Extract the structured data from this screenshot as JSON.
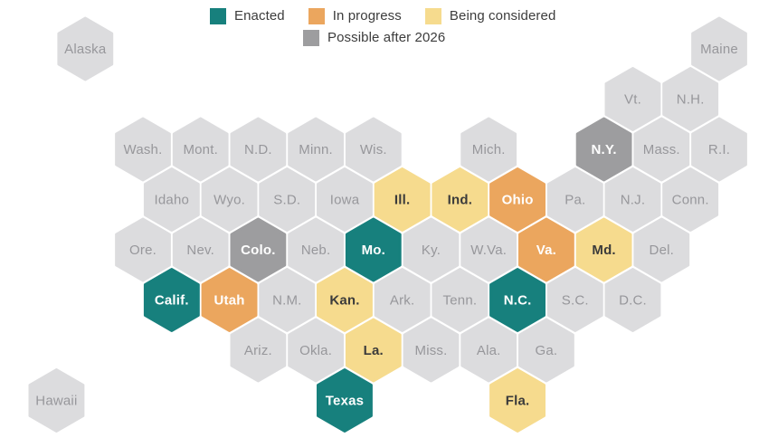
{
  "legend": {
    "items": [
      {
        "key": "enacted",
        "label": "Enacted"
      },
      {
        "key": "in_progress",
        "label": "In progress"
      },
      {
        "key": "being_considered",
        "label": "Being considered"
      },
      {
        "key": "possible_after_2026",
        "label": "Possible after 2026"
      }
    ]
  },
  "colors": {
    "enacted": "#17807d",
    "in_progress": "#eba65e",
    "being_considered": "#f6db8e",
    "possible_after_2026": "#9d9d9f",
    "none": "#dcdcde",
    "label_gray": "#97979b",
    "label_dark": "#3b3b3b",
    "label_white": "#ffffff",
    "legend_text": "#3c3c3c",
    "background": "#ffffff"
  },
  "chart_data": {
    "type": "heatmap",
    "subtype": "us-state-hex-cartogram",
    "title": "",
    "legend_position": "top-center",
    "categories": [
      "Enacted",
      "In progress",
      "Being considered",
      "Possible after 2026"
    ],
    "status_by_category": {
      "Enacted": [
        "Calif.",
        "Mo.",
        "N.C.",
        "Texas"
      ],
      "In progress": [
        "Utah",
        "Ohio",
        "Va."
      ],
      "Being considered": [
        "Ill.",
        "Ind.",
        "Kan.",
        "Md.",
        "La.",
        "Fla."
      ],
      "Possible after 2026": [
        "N.Y.",
        "Colo."
      ]
    },
    "states": [
      {
        "id": "alaska",
        "label": "Alaska",
        "row": 0,
        "col": -1,
        "status": "none"
      },
      {
        "id": "maine",
        "label": "Maine",
        "row": 0,
        "col": 10,
        "status": "none"
      },
      {
        "id": "vt",
        "label": "Vt.",
        "row": 1,
        "col": 8,
        "status": "none"
      },
      {
        "id": "nh",
        "label": "N.H.",
        "row": 1,
        "col": 9,
        "status": "none"
      },
      {
        "id": "wash",
        "label": "Wash.",
        "row": 2,
        "col": 0,
        "status": "none"
      },
      {
        "id": "mont",
        "label": "Mont.",
        "row": 2,
        "col": 1,
        "status": "none"
      },
      {
        "id": "nd",
        "label": "N.D.",
        "row": 2,
        "col": 2,
        "status": "none"
      },
      {
        "id": "minn",
        "label": "Minn.",
        "row": 2,
        "col": 3,
        "status": "none"
      },
      {
        "id": "wis",
        "label": "Wis.",
        "row": 2,
        "col": 4,
        "status": "none"
      },
      {
        "id": "mich",
        "label": "Mich.",
        "row": 2,
        "col": 6,
        "status": "none"
      },
      {
        "id": "ny",
        "label": "N.Y.",
        "row": 2,
        "col": 8,
        "status": "possible_after_2026"
      },
      {
        "id": "mass",
        "label": "Mass.",
        "row": 2,
        "col": 9,
        "status": "none"
      },
      {
        "id": "ri",
        "label": "R.I.",
        "row": 2,
        "col": 10,
        "status": "none"
      },
      {
        "id": "idaho",
        "label": "Idaho",
        "row": 3,
        "col": 0,
        "status": "none"
      },
      {
        "id": "wyo",
        "label": "Wyo.",
        "row": 3,
        "col": 1,
        "status": "none"
      },
      {
        "id": "sd",
        "label": "S.D.",
        "row": 3,
        "col": 2,
        "status": "none"
      },
      {
        "id": "iowa",
        "label": "Iowa",
        "row": 3,
        "col": 3,
        "status": "none"
      },
      {
        "id": "ill",
        "label": "Ill.",
        "row": 3,
        "col": 4,
        "status": "being_considered"
      },
      {
        "id": "ind",
        "label": "Ind.",
        "row": 3,
        "col": 5,
        "status": "being_considered"
      },
      {
        "id": "ohio",
        "label": "Ohio",
        "row": 3,
        "col": 6,
        "status": "in_progress"
      },
      {
        "id": "pa",
        "label": "Pa.",
        "row": 3,
        "col": 7,
        "status": "none"
      },
      {
        "id": "nj",
        "label": "N.J.",
        "row": 3,
        "col": 8,
        "status": "none"
      },
      {
        "id": "conn",
        "label": "Conn.",
        "row": 3,
        "col": 9,
        "status": "none"
      },
      {
        "id": "ore",
        "label": "Ore.",
        "row": 4,
        "col": 0,
        "status": "none"
      },
      {
        "id": "nev",
        "label": "Nev.",
        "row": 4,
        "col": 1,
        "status": "none"
      },
      {
        "id": "colo",
        "label": "Colo.",
        "row": 4,
        "col": 2,
        "status": "possible_after_2026"
      },
      {
        "id": "neb",
        "label": "Neb.",
        "row": 4,
        "col": 3,
        "status": "none"
      },
      {
        "id": "mo",
        "label": "Mo.",
        "row": 4,
        "col": 4,
        "status": "enacted"
      },
      {
        "id": "ky",
        "label": "Ky.",
        "row": 4,
        "col": 5,
        "status": "none"
      },
      {
        "id": "wva",
        "label": "W.Va.",
        "row": 4,
        "col": 6,
        "status": "none"
      },
      {
        "id": "va",
        "label": "Va.",
        "row": 4,
        "col": 7,
        "status": "in_progress"
      },
      {
        "id": "md",
        "label": "Md.",
        "row": 4,
        "col": 8,
        "status": "being_considered"
      },
      {
        "id": "del",
        "label": "Del.",
        "row": 4,
        "col": 9,
        "status": "none"
      },
      {
        "id": "calif",
        "label": "Calif.",
        "row": 5,
        "col": 0,
        "status": "enacted"
      },
      {
        "id": "utah",
        "label": "Utah",
        "row": 5,
        "col": 1,
        "status": "in_progress"
      },
      {
        "id": "nm",
        "label": "N.M.",
        "row": 5,
        "col": 2,
        "status": "none"
      },
      {
        "id": "kan",
        "label": "Kan.",
        "row": 5,
        "col": 3,
        "status": "being_considered"
      },
      {
        "id": "ark",
        "label": "Ark.",
        "row": 5,
        "col": 4,
        "status": "none"
      },
      {
        "id": "tenn",
        "label": "Tenn.",
        "row": 5,
        "col": 5,
        "status": "none"
      },
      {
        "id": "nc",
        "label": "N.C.",
        "row": 5,
        "col": 6,
        "status": "enacted"
      },
      {
        "id": "sc",
        "label": "S.C.",
        "row": 5,
        "col": 7,
        "status": "none"
      },
      {
        "id": "dc",
        "label": "D.C.",
        "row": 5,
        "col": 8,
        "status": "none"
      },
      {
        "id": "ariz",
        "label": "Ariz.",
        "row": 6,
        "col": 2,
        "status": "none"
      },
      {
        "id": "okla",
        "label": "Okla.",
        "row": 6,
        "col": 3,
        "status": "none"
      },
      {
        "id": "la",
        "label": "La.",
        "row": 6,
        "col": 4,
        "status": "being_considered"
      },
      {
        "id": "miss",
        "label": "Miss.",
        "row": 6,
        "col": 5,
        "status": "none"
      },
      {
        "id": "ala",
        "label": "Ala.",
        "row": 6,
        "col": 6,
        "status": "none"
      },
      {
        "id": "ga",
        "label": "Ga.",
        "row": 6,
        "col": 7,
        "status": "none"
      },
      {
        "id": "hawaii",
        "label": "Hawaii",
        "row": 7,
        "col": -2,
        "status": "none"
      },
      {
        "id": "texas",
        "label": "Texas",
        "row": 7,
        "col": 3,
        "status": "enacted"
      },
      {
        "id": "fla",
        "label": "Fla.",
        "row": 7,
        "col": 6,
        "status": "being_considered"
      }
    ]
  }
}
